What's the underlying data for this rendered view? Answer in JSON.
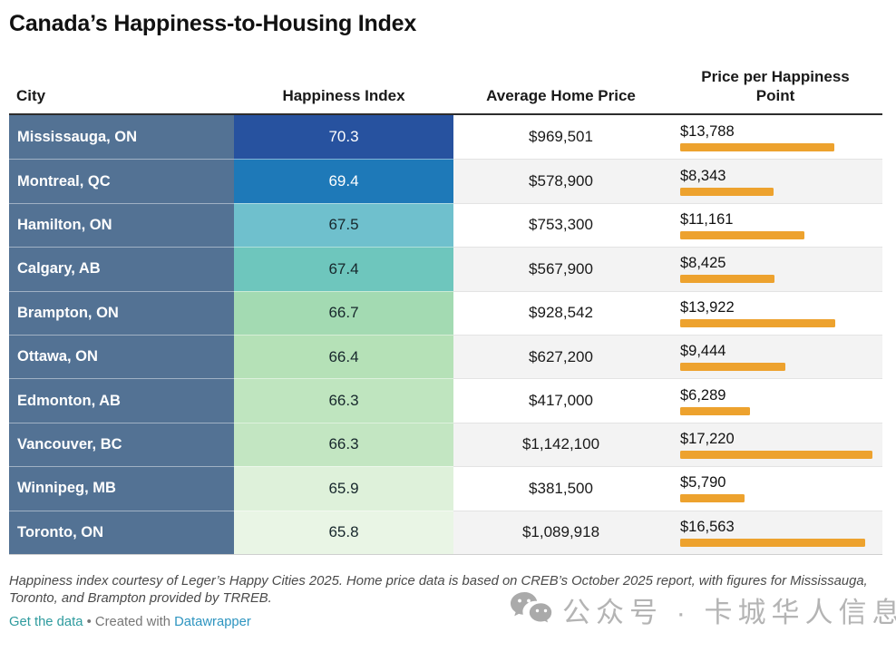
{
  "title": "Canada’s Happiness-to-Housing Index",
  "table": {
    "columns": {
      "city": "City",
      "happiness": "Happiness Index",
      "home_price": "Average Home Price",
      "price_per_point": "Price per Happiness Point"
    },
    "rows": [
      {
        "city": "Mississauga, ON",
        "happiness": "70.3",
        "home_price": "$969,501",
        "price_per_point": "$13,788",
        "bar_pct": 80.1,
        "cell_bg": "#27529f",
        "cell_text": "#ffffff"
      },
      {
        "city": "Montreal, QC",
        "happiness": "69.4",
        "home_price": "$578,900",
        "price_per_point": "$8,343",
        "bar_pct": 48.4,
        "cell_bg": "#1e79b8",
        "cell_text": "#ffffff"
      },
      {
        "city": "Hamilton, ON",
        "happiness": "67.5",
        "home_price": "$753,300",
        "price_per_point": "$11,161",
        "bar_pct": 64.8,
        "cell_bg": "#6fc0cd",
        "cell_text": "#17272c"
      },
      {
        "city": "Calgary, AB",
        "happiness": "67.4",
        "home_price": "$567,900",
        "price_per_point": "$8,425",
        "bar_pct": 48.9,
        "cell_bg": "#6ec6bd",
        "cell_text": "#17272c"
      },
      {
        "city": "Brampton, ON",
        "happiness": "66.7",
        "home_price": "$928,542",
        "price_per_point": "$13,922",
        "bar_pct": 80.8,
        "cell_bg": "#a3dab2",
        "cell_text": "#17272c"
      },
      {
        "city": "Ottawa, ON",
        "happiness": "66.4",
        "home_price": "$627,200",
        "price_per_point": "$9,444",
        "bar_pct": 54.8,
        "cell_bg": "#b5e1b7",
        "cell_text": "#17272c"
      },
      {
        "city": "Edmonton, AB",
        "happiness": "66.3",
        "home_price": "$417,000",
        "price_per_point": "$6,289",
        "bar_pct": 36.5,
        "cell_bg": "#bfe5bf",
        "cell_text": "#17272c"
      },
      {
        "city": "Vancouver, BC",
        "happiness": "66.3",
        "home_price": "$1,142,100",
        "price_per_point": "$17,220",
        "bar_pct": 100,
        "cell_bg": "#c3e6c2",
        "cell_text": "#17272c"
      },
      {
        "city": "Winnipeg, MB",
        "happiness": "65.9",
        "home_price": "$381,500",
        "price_per_point": "$5,790",
        "bar_pct": 33.6,
        "cell_bg": "#def1da",
        "cell_text": "#17272c"
      },
      {
        "city": "Toronto, ON",
        "happiness": "65.8",
        "home_price": "$1,089,918",
        "price_per_point": "$16,563",
        "bar_pct": 96.2,
        "cell_bg": "#e9f5e5",
        "cell_text": "#17272c"
      }
    ]
  },
  "notes": "Happiness index courtesy of Leger’s Happy Cities 2025. Home price data is based on CREB’s October 2025 report, with figures for Mississauga, Toronto, and Brampton provided by TRREB.",
  "footer": {
    "get_data_label": "Get the data",
    "separator": "•",
    "created_with": "Created with",
    "datawrapper_label": "Datawrapper"
  },
  "watermark": {
    "icon": "wechat-icon",
    "text": "公众号 · 卡城华人信息平台"
  },
  "colors": {
    "city_column_bg": "#537294",
    "bar_orange": "#eda22e",
    "alt_row_bg": "#f3f3f3",
    "link_teal": "#2e9b9e",
    "link_blue": "#2e95c0",
    "watermark_grey": "#b4b4b4"
  },
  "chart_data": {
    "type": "table",
    "title": "Canada’s Happiness-to-Housing Index",
    "columns": [
      "City",
      "Happiness Index",
      "Average Home Price",
      "Price per Happiness Point"
    ],
    "rows": [
      [
        "Mississauga, ON",
        70.3,
        969501,
        13788
      ],
      [
        "Montreal, QC",
        69.4,
        578900,
        8343
      ],
      [
        "Hamilton, ON",
        67.5,
        753300,
        11161
      ],
      [
        "Calgary, AB",
        67.4,
        567900,
        8425
      ],
      [
        "Brampton, ON",
        66.7,
        928542,
        13922
      ],
      [
        "Ottawa, ON",
        66.4,
        627200,
        9444
      ],
      [
        "Edmonton, AB",
        66.3,
        417000,
        6289
      ],
      [
        "Vancouver, BC",
        66.3,
        1142100,
        17220
      ],
      [
        "Winnipeg, MB",
        65.9,
        381500,
        5790
      ],
      [
        "Toronto, ON",
        65.8,
        1089918,
        16563
      ]
    ],
    "notes": "Happiness Index cells use a blue-to-green sequential color scale (higher = darker blue); Price per Happiness Point shown as orange bars scaled to max $17,220"
  }
}
